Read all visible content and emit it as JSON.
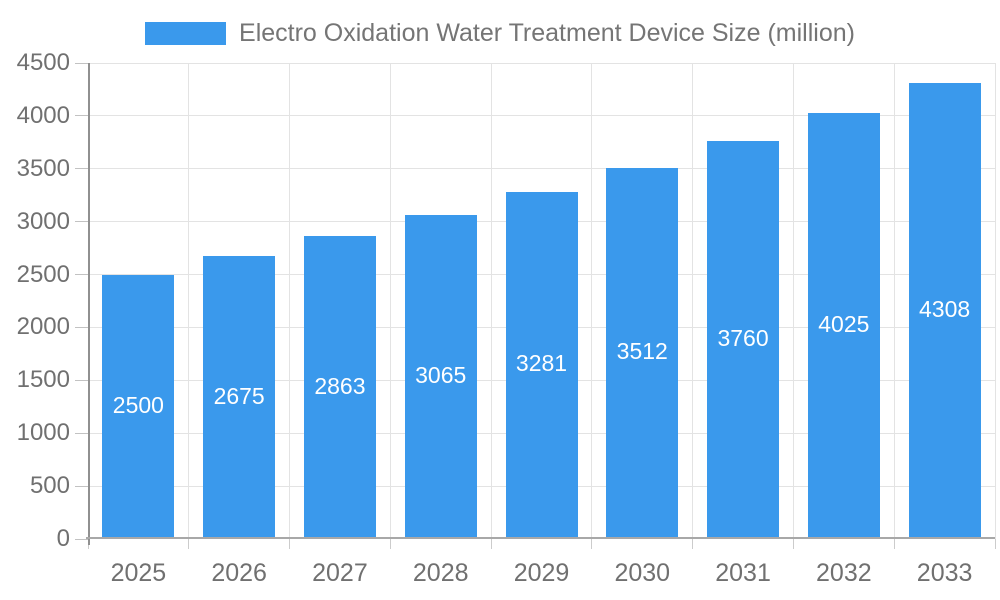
{
  "legend": {
    "label": "Electro Oxidation Water Treatment Device Size (million)"
  },
  "colors": {
    "bar": "#3A99EC",
    "grid": "#E3E3E3",
    "axis_line": "#9A9A9A",
    "axis_text": "#707070",
    "legend_text": "#757575",
    "bar_label_text": "#FFFFFF",
    "background": "#FFFFFF"
  },
  "chart_data": {
    "type": "bar",
    "title": "Electro Oxidation Water Treatment Device Size (million)",
    "categories": [
      "2025",
      "2026",
      "2027",
      "2028",
      "2029",
      "2030",
      "2031",
      "2032",
      "2033"
    ],
    "values": [
      2500,
      2675,
      2863,
      3065,
      3281,
      3512,
      3760,
      4025,
      4308
    ],
    "series": [
      {
        "name": "Electro Oxidation Water Treatment Device Size (million)",
        "values": [
          2500,
          2675,
          2863,
          3065,
          3281,
          3512,
          3760,
          4025,
          4308
        ]
      }
    ],
    "xlabel": "",
    "ylabel": "",
    "ylim": [
      0,
      4500
    ],
    "ytick_step": 500,
    "ytick_labels": [
      "0",
      "500",
      "1000",
      "1500",
      "2000",
      "2500",
      "3000",
      "3500",
      "4000",
      "4500"
    ],
    "grid": true,
    "legend_position": "top-center",
    "bar_labels_inside": true
  }
}
